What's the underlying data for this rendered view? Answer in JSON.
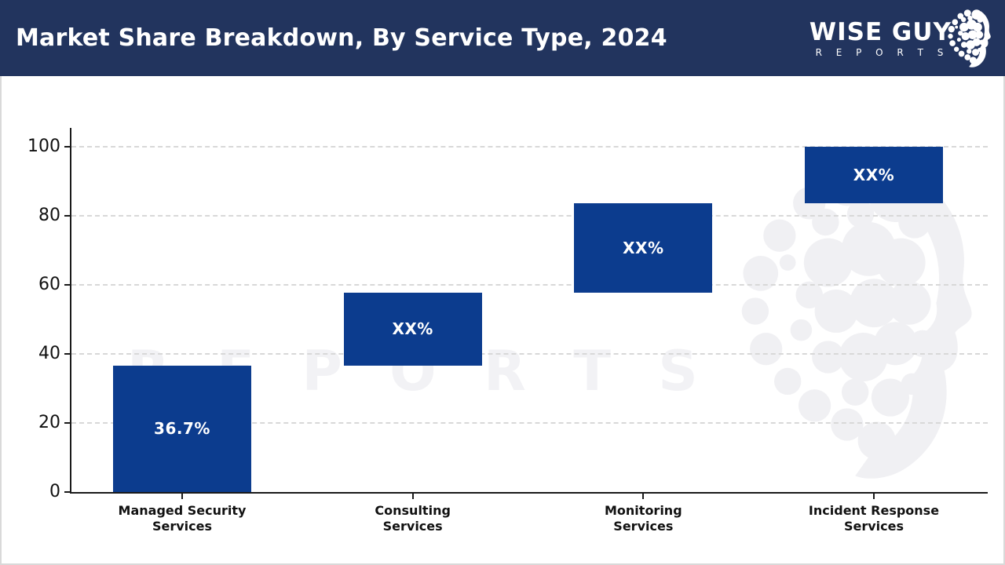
{
  "header": {
    "title": "Market Share Breakdown, By Service Type, 2024",
    "bg_color": "#22345e",
    "logo": {
      "name": "WISE GUY",
      "subname": "R E P O R T S"
    }
  },
  "watermark": {
    "line1": "WISE GUY",
    "line2": "R E P O R T S"
  },
  "chart_data": {
    "type": "bar",
    "subtype": "waterfall",
    "title": "Market Share Breakdown, By Service Type, 2024",
    "xlabel": "",
    "ylabel": "",
    "ylim": [
      0,
      105.5
    ],
    "yticks": [
      0,
      20,
      40,
      60,
      80,
      100
    ],
    "grid": "dashed-horizontal",
    "bar_color": "#0c3c8e",
    "label_color": "#ffffff",
    "categories": [
      "Managed Security\nServices",
      "Consulting\nServices",
      "Monitoring\nServices",
      "Incident Response\nServices"
    ],
    "bars": [
      {
        "category": "Managed Security\nServices",
        "start": 0,
        "end": 36.7,
        "value": 36.7,
        "value_label": "36.7%"
      },
      {
        "category": "Consulting\nServices",
        "start": 36.7,
        "end": 57.7,
        "value": 21.0,
        "value_label": "XX%"
      },
      {
        "category": "Monitoring\nServices",
        "start": 57.7,
        "end": 83.6,
        "value": 25.9,
        "value_label": "XX%"
      },
      {
        "category": "Incident Response\nServices",
        "start": 83.6,
        "end": 100.0,
        "value": 16.4,
        "value_label": "XX%"
      }
    ]
  }
}
